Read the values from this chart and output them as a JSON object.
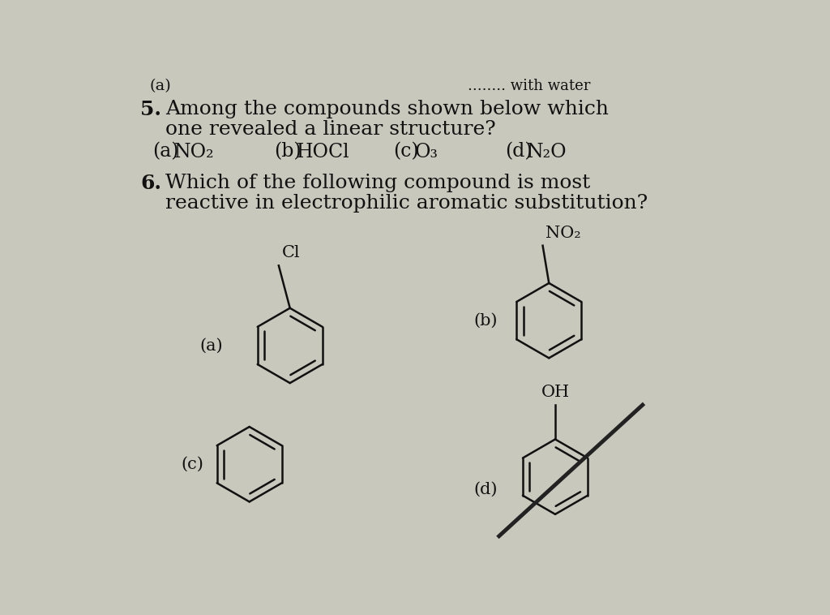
{
  "background_color": "#c8c8bc",
  "text_color": "#111111",
  "q5_number": "5.",
  "q5_text_line1": "Among the compounds shown below which",
  "q5_text_line2": "one revealed a linear structure?",
  "q5_options": [
    {
      "label": "(a)",
      "compound": "NO₂"
    },
    {
      "label": "(b)",
      "compound": "HOCl"
    },
    {
      "label": "(c)",
      "compound": "O₃"
    },
    {
      "label": "(d)",
      "compound": "N₂O"
    }
  ],
  "q6_number": "6.",
  "q6_text_line1": "Which of the following compound is most",
  "q6_text_line2": "reactive in electrophilic aromatic substitution?",
  "q6_labels": [
    "(a)",
    "(b)",
    "(c)",
    "(d)"
  ],
  "q6_substituents": [
    "Cl",
    "NO₂",
    "",
    "OH"
  ],
  "top_partial_left": "(a)",
  "top_partial_right": "........ with water",
  "font_size_question": 18,
  "font_size_options": 17,
  "font_size_struct_label": 15,
  "font_size_substituent": 15
}
